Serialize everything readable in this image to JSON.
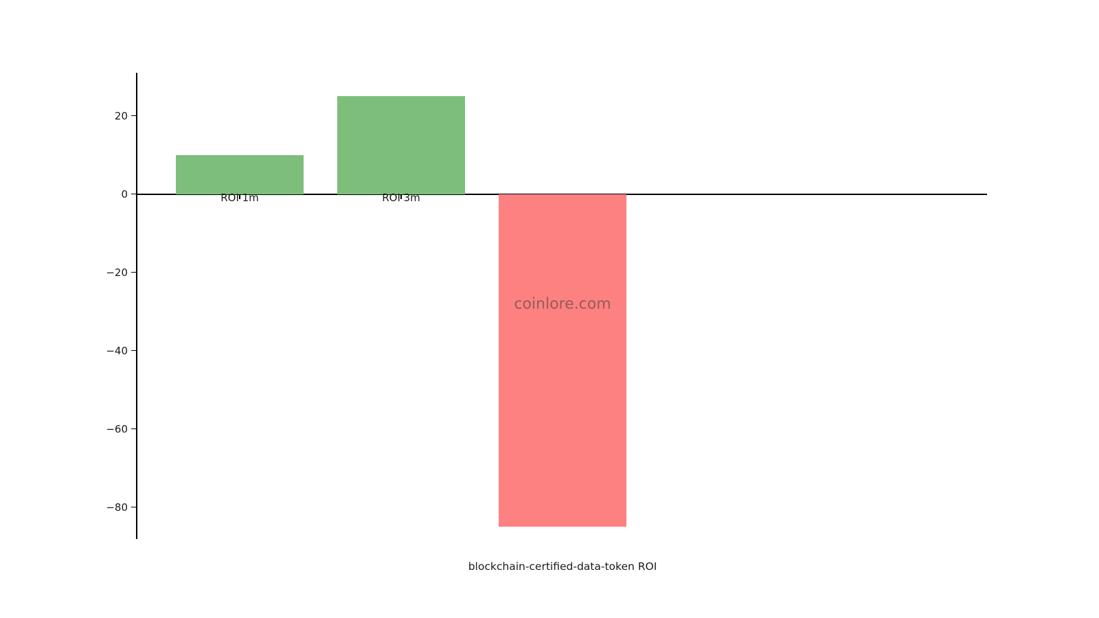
{
  "chart_data": {
    "type": "bar",
    "title": "blockchain-certified-data-token ROI",
    "watermark": "coinlore.com",
    "xlabel": "",
    "ylabel": "",
    "categories": [
      "ROI 1m",
      "ROI 3m",
      ""
    ],
    "values": [
      10,
      25,
      -85
    ],
    "colors": [
      "#7dbe7b",
      "#7dbe7b",
      "#fd8181"
    ],
    "positive_color": "#7dbe7b",
    "negative_color": "#fd8181",
    "watermark_color": "#975a5a",
    "axis_color": "#000000",
    "ylim": [
      -88,
      31
    ],
    "grid": "off",
    "legend": "none",
    "yticks": [
      {
        "value": 20,
        "label": "20"
      },
      {
        "value": 0,
        "label": "0"
      },
      {
        "value": -20,
        "label": "−20"
      },
      {
        "value": -40,
        "label": "−40"
      },
      {
        "value": -60,
        "label": "−60"
      },
      {
        "value": -80,
        "label": "−80"
      }
    ]
  }
}
